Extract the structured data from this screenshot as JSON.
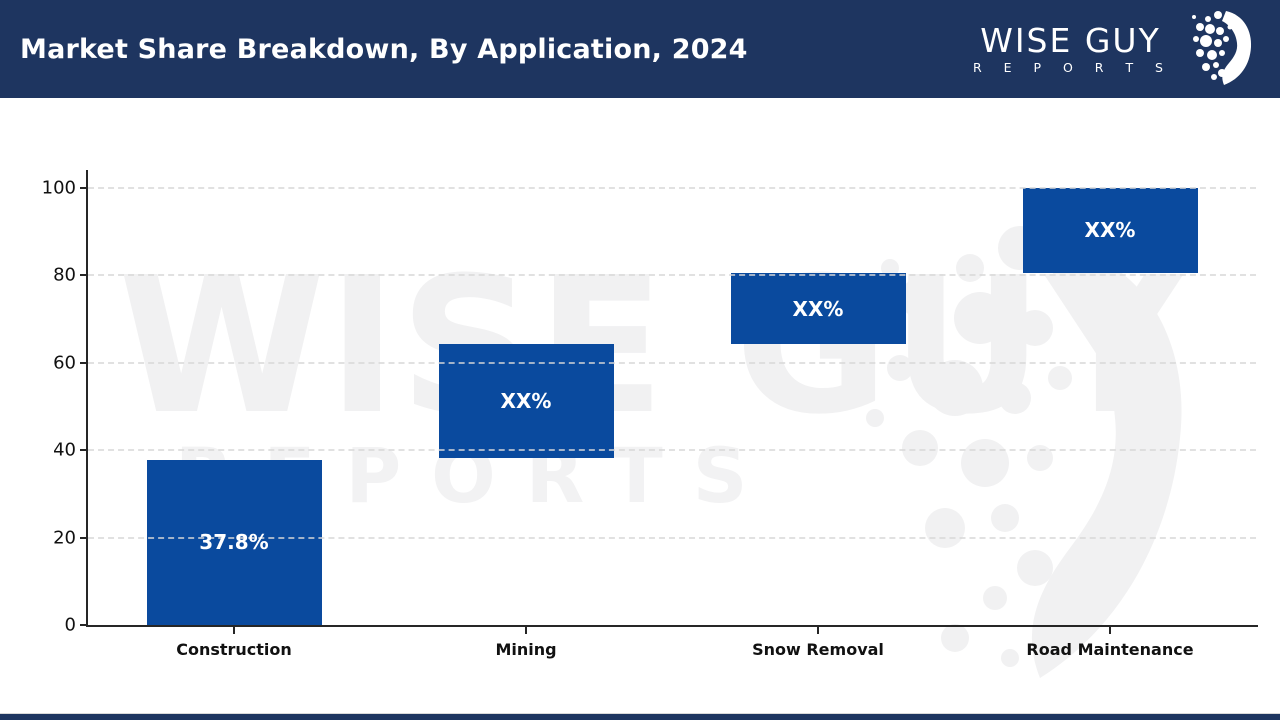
{
  "header": {
    "title": "Market Share Breakdown, By Application, 2024",
    "logo": {
      "wise_guy": "WISE GUY",
      "reports": "R E P O R T S"
    }
  },
  "watermark": {
    "wise_guy": "WISE GUY",
    "reports": "REPORTS"
  },
  "colors": {
    "header_bg": "#1e3560",
    "bar": "#0a4a9e",
    "bar_label": "#ffffff",
    "grid": "#d7d7d7",
    "axis": "#262626",
    "watermark": "#f1f1f2"
  },
  "chart_data": {
    "type": "bar",
    "variant": "waterfall",
    "title": "Market Share Breakdown, By Application, 2024",
    "categories": [
      "Construction",
      "Mining",
      "Snow Removal",
      "Road Maintenance"
    ],
    "segments": [
      {
        "category": "Construction",
        "start": 0,
        "end": 37.8,
        "label": "37.8%"
      },
      {
        "category": "Mining",
        "start": 38.2,
        "end": 64.3,
        "label": "XX%"
      },
      {
        "category": "Snow Removal",
        "start": 64.2,
        "end": 80.6,
        "label": "XX%"
      },
      {
        "category": "Road Maintenance",
        "start": 80.6,
        "end": 100,
        "label": "XX%"
      }
    ],
    "ylim": [
      0,
      100
    ],
    "yticks": [
      0,
      20,
      40,
      60,
      80,
      100
    ],
    "grid": "horizontal-dashed",
    "legend": "none"
  }
}
